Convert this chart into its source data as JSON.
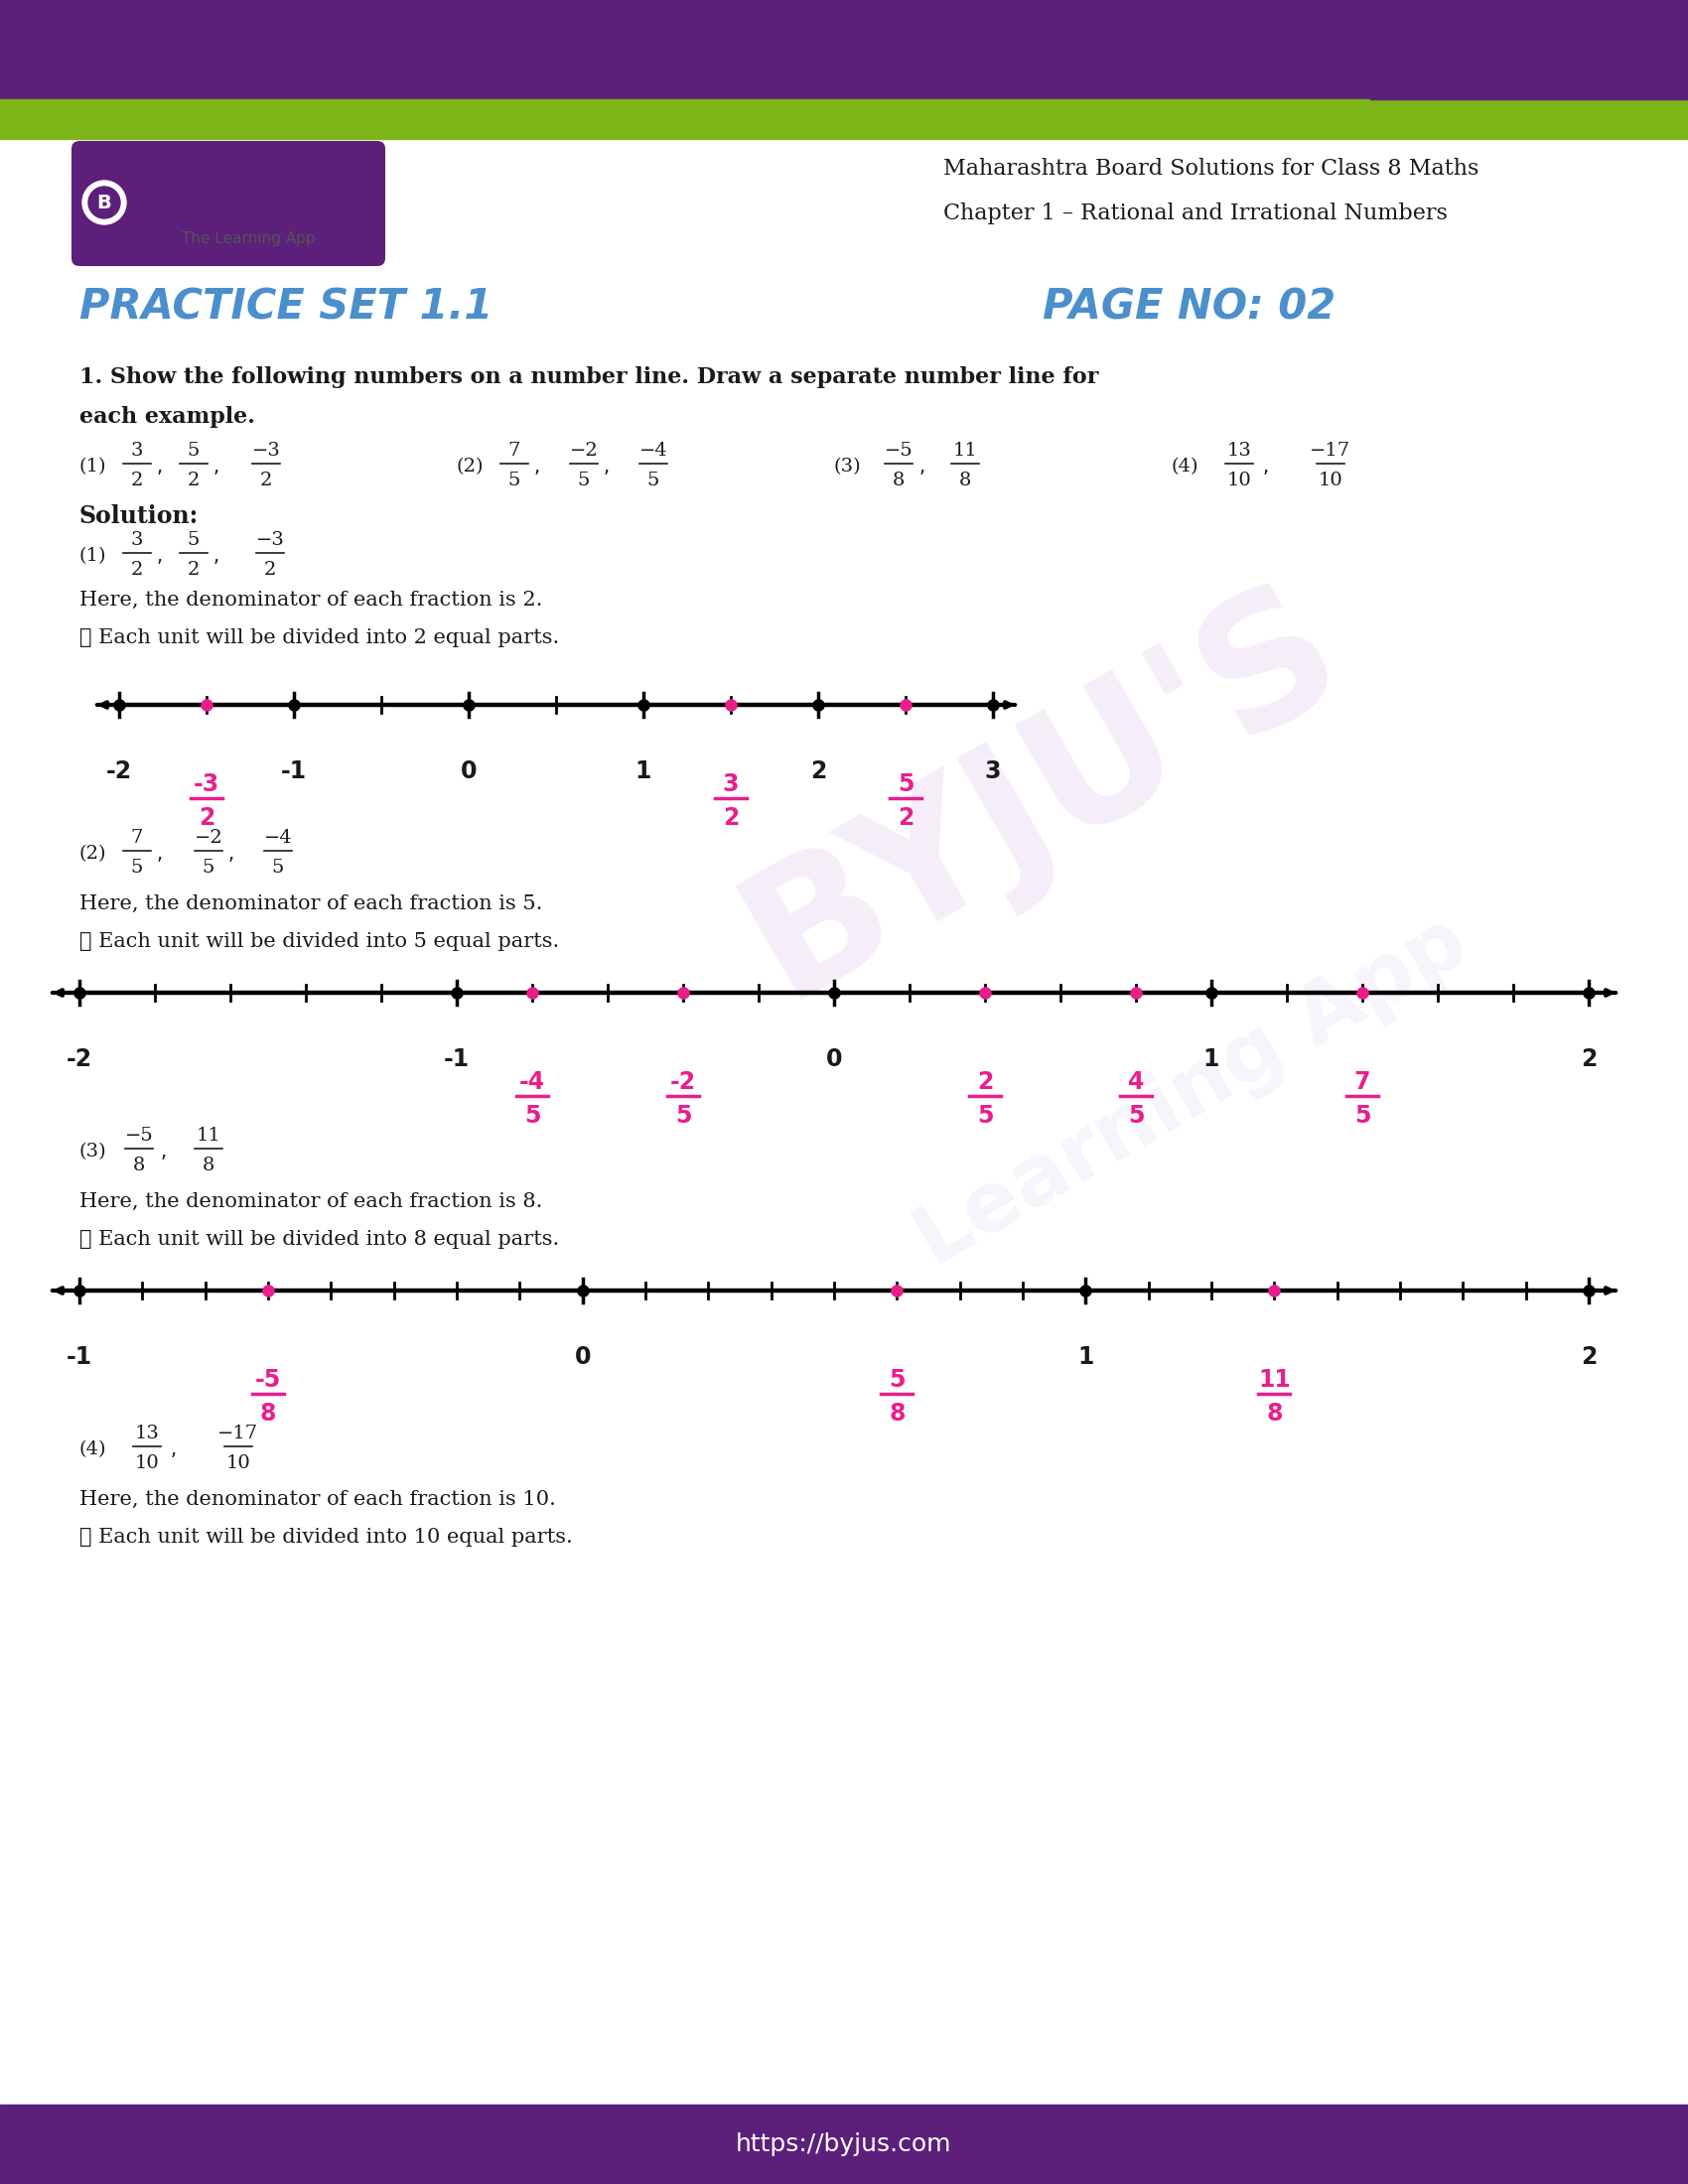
{
  "bg_color": "#ffffff",
  "header_purple": "#5C1F7A",
  "header_green": "#7CB518",
  "blue_heading": "#4B8FCC",
  "pink_color": "#E91E8C",
  "black_color": "#1A1A1A",
  "title_line1": "Maharashtra Board Solutions for Class 8 Maths",
  "title_line2": "Chapter 1 – Rational and Irrational Numbers",
  "practice_set": "PRACTICE SET 1.1",
  "page_no": "PAGE NO: 02",
  "footer_text": "https://byjus.com",
  "footer_bg": "#5C1F7A"
}
